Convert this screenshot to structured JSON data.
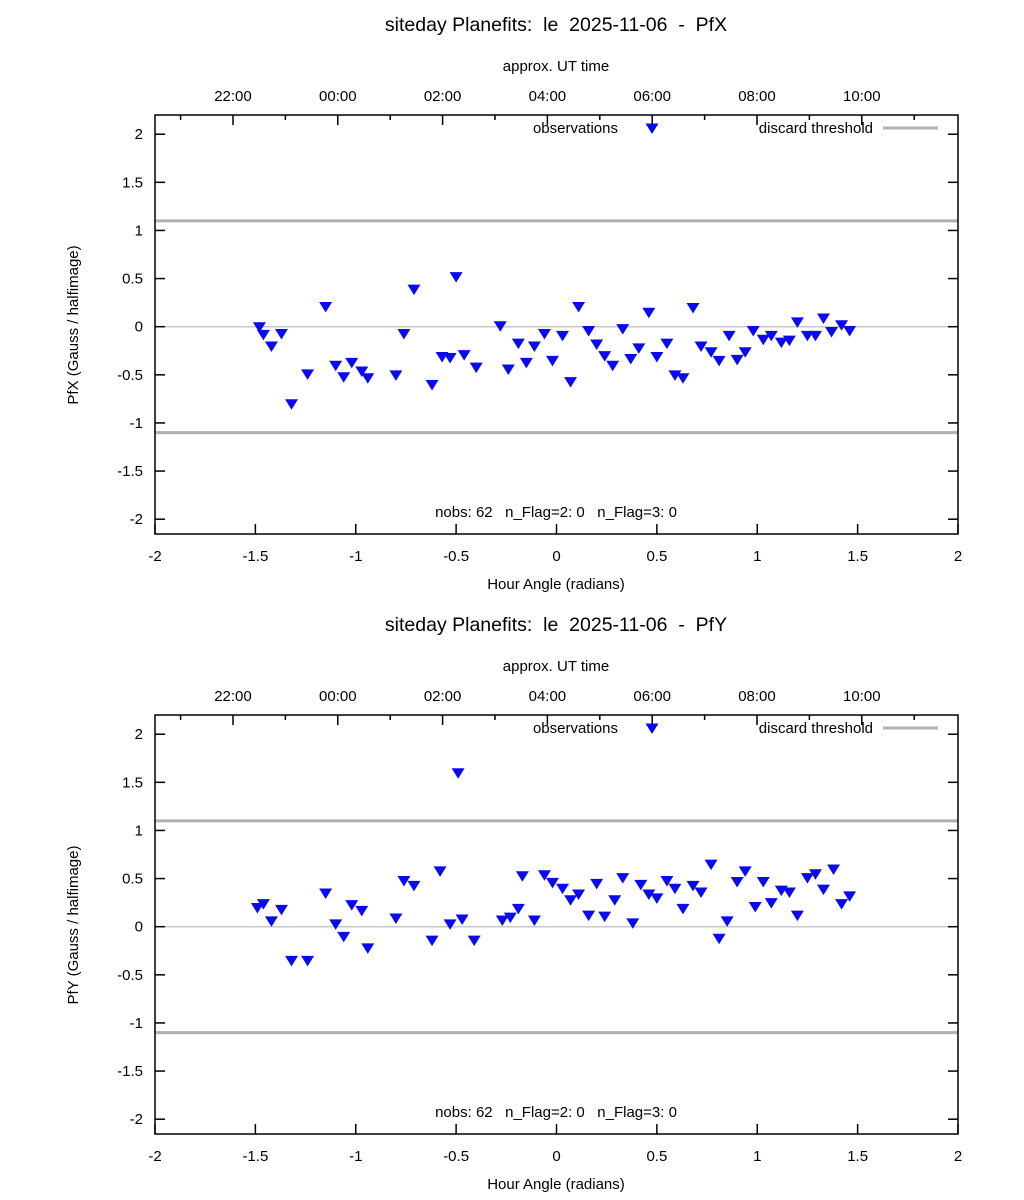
{
  "page": {
    "background": "#ffffff"
  },
  "colors": {
    "marker": "#0a0aee",
    "threshold_line": "#b0b0b0",
    "zero_line": "#c8c8c8",
    "axis": "#000000",
    "text": "#000000"
  },
  "chart_data": [
    {
      "type": "scatter",
      "title": "siteday Planefits:  le  2025-11-06  -  PfX",
      "x2_label": "approx. UT time",
      "ylabel": "PfX (Gauss / halfimage)",
      "xlabel": "Hour Angle (radians)",
      "stats_text": "nobs: 62   n_Flag=2: 0   n_Flag=3: 0",
      "nobs": 62,
      "n_flag2": 0,
      "n_flag3": 0,
      "legend": [
        {
          "label": "observations",
          "type": "marker",
          "marker": "triangle-down"
        },
        {
          "label": "discard threshold",
          "type": "line"
        }
      ],
      "legend_position": "inside-top-right",
      "grid": "zero-line-only",
      "xlim": [
        -2,
        2
      ],
      "ylim": [
        -2.2,
        2.2
      ],
      "x_ticks": [
        -2,
        -1.5,
        -1,
        -0.5,
        0,
        0.5,
        1,
        1.5,
        2
      ],
      "x_tick_labels": [
        "-2",
        "-1.5",
        "-1",
        "-0.5",
        "0",
        "0.5",
        "1",
        "1.5",
        "2"
      ],
      "y_ticks": [
        2,
        1.5,
        1,
        0.5,
        0,
        -0.5,
        -1,
        -1.5,
        -2
      ],
      "y_tick_labels": [
        "2",
        "1.5",
        "1",
        "0.5",
        "0",
        "-0.5",
        "-1",
        "-1.5",
        "-2"
      ],
      "x2_ticks": [
        {
          "label": "22:00",
          "x": -1.6115
        },
        {
          "label": "00:00",
          "x": -1.0894
        },
        {
          "label": "02:00",
          "x": -0.5674
        },
        {
          "label": "04:00",
          "x": -0.0454
        },
        {
          "label": "06:00",
          "x": 0.4767
        },
        {
          "label": "08:00",
          "x": 0.9987
        },
        {
          "label": "10:00",
          "x": 1.5208
        }
      ],
      "x2_minor_ticks": [
        -1.8725,
        -1.3505,
        -0.8284,
        -0.3064,
        0.2157,
        0.7377,
        1.2597,
        1.7818
      ],
      "thresholds": [
        1.1,
        -1.1
      ],
      "zero_line": 0,
      "series": [
        {
          "name": "observations",
          "marker": "triangle-down",
          "points": [
            [
              -1.48,
              0.0
            ],
            [
              -1.46,
              -0.08
            ],
            [
              -1.42,
              -0.2
            ],
            [
              -1.37,
              -0.07
            ],
            [
              -1.32,
              -0.8
            ],
            [
              -1.24,
              -0.49
            ],
            [
              -1.15,
              0.21
            ],
            [
              -1.1,
              -0.4
            ],
            [
              -1.06,
              -0.52
            ],
            [
              -1.02,
              -0.37
            ],
            [
              -0.97,
              -0.46
            ],
            [
              -0.94,
              -0.53
            ],
            [
              -0.8,
              -0.5
            ],
            [
              -0.76,
              -0.07
            ],
            [
              -0.71,
              0.39
            ],
            [
              -0.62,
              -0.6
            ],
            [
              -0.57,
              -0.31
            ],
            [
              -0.53,
              -0.32
            ],
            [
              -0.5,
              0.52
            ],
            [
              -0.46,
              -0.29
            ],
            [
              -0.4,
              -0.42
            ],
            [
              -0.28,
              0.01
            ],
            [
              -0.24,
              -0.44
            ],
            [
              -0.19,
              -0.17
            ],
            [
              -0.15,
              -0.37
            ],
            [
              -0.11,
              -0.2
            ],
            [
              -0.06,
              -0.07
            ],
            [
              -0.02,
              -0.35
            ],
            [
              0.03,
              -0.09
            ],
            [
              0.07,
              -0.57
            ],
            [
              0.11,
              0.21
            ],
            [
              0.16,
              -0.04
            ],
            [
              0.2,
              -0.18
            ],
            [
              0.24,
              -0.3
            ],
            [
              0.28,
              -0.4
            ],
            [
              0.33,
              -0.02
            ],
            [
              0.37,
              -0.33
            ],
            [
              0.41,
              -0.22
            ],
            [
              0.46,
              0.15
            ],
            [
              0.5,
              -0.31
            ],
            [
              0.55,
              -0.17
            ],
            [
              0.59,
              -0.5
            ],
            [
              0.63,
              -0.53
            ],
            [
              0.68,
              0.2
            ],
            [
              0.72,
              -0.2
            ],
            [
              0.77,
              -0.26
            ],
            [
              0.81,
              -0.35
            ],
            [
              0.86,
              -0.09
            ],
            [
              0.9,
              -0.34
            ],
            [
              0.94,
              -0.26
            ],
            [
              0.98,
              -0.04
            ],
            [
              1.03,
              -0.13
            ],
            [
              1.07,
              -0.09
            ],
            [
              1.12,
              -0.16
            ],
            [
              1.16,
              -0.14
            ],
            [
              1.2,
              0.05
            ],
            [
              1.25,
              -0.09
            ],
            [
              1.29,
              -0.09
            ],
            [
              1.33,
              0.09
            ],
            [
              1.37,
              -0.05
            ],
            [
              1.42,
              0.02
            ],
            [
              1.46,
              -0.04
            ]
          ]
        }
      ]
    },
    {
      "type": "scatter",
      "title": "siteday Planefits:  le  2025-11-06  -  PfY",
      "x2_label": "approx. UT time",
      "ylabel": "PfY (Gauss / halfimage)",
      "xlabel": "Hour Angle (radians)",
      "stats_text": "nobs: 62   n_Flag=2: 0   n_Flag=3: 0",
      "nobs": 62,
      "n_flag2": 0,
      "n_flag3": 0,
      "legend": [
        {
          "label": "observations",
          "type": "marker",
          "marker": "triangle-down"
        },
        {
          "label": "discard threshold",
          "type": "line"
        }
      ],
      "legend_position": "inside-top-right",
      "grid": "zero-line-only",
      "xlim": [
        -2,
        2
      ],
      "ylim": [
        -2.2,
        2.2
      ],
      "x_ticks": [
        -2,
        -1.5,
        -1,
        -0.5,
        0,
        0.5,
        1,
        1.5,
        2
      ],
      "x_tick_labels": [
        "-2",
        "-1.5",
        "-1",
        "-0.5",
        "0",
        "0.5",
        "1",
        "1.5",
        "2"
      ],
      "y_ticks": [
        2,
        1.5,
        1,
        0.5,
        0,
        -0.5,
        -1,
        -1.5,
        -2
      ],
      "y_tick_labels": [
        "2",
        "1.5",
        "1",
        "0.5",
        "0",
        "-0.5",
        "-1",
        "-1.5",
        "-2"
      ],
      "x2_ticks": [
        {
          "label": "22:00",
          "x": -1.6115
        },
        {
          "label": "00:00",
          "x": -1.0894
        },
        {
          "label": "02:00",
          "x": -0.5674
        },
        {
          "label": "04:00",
          "x": -0.0454
        },
        {
          "label": "06:00",
          "x": 0.4767
        },
        {
          "label": "08:00",
          "x": 0.9987
        },
        {
          "label": "10:00",
          "x": 1.5208
        }
      ],
      "x2_minor_ticks": [
        -1.8725,
        -1.3505,
        -0.8284,
        -0.3064,
        0.2157,
        0.7377,
        1.2597,
        1.7818
      ],
      "thresholds": [
        1.1,
        -1.1
      ],
      "zero_line": 0,
      "series": [
        {
          "name": "observations",
          "marker": "triangle-down",
          "points": [
            [
              -1.49,
              0.2
            ],
            [
              -1.46,
              0.24
            ],
            [
              -1.42,
              0.06
            ],
            [
              -1.37,
              0.18
            ],
            [
              -1.32,
              -0.35
            ],
            [
              -1.24,
              -0.35
            ],
            [
              -1.15,
              0.35
            ],
            [
              -1.1,
              0.03
            ],
            [
              -1.06,
              -0.1
            ],
            [
              -1.02,
              0.23
            ],
            [
              -0.97,
              0.17
            ],
            [
              -0.94,
              -0.22
            ],
            [
              -0.8,
              0.09
            ],
            [
              -0.76,
              0.48
            ],
            [
              -0.71,
              0.43
            ],
            [
              -0.62,
              -0.14
            ],
            [
              -0.58,
              0.58
            ],
            [
              -0.53,
              0.03
            ],
            [
              -0.49,
              1.6
            ],
            [
              -0.47,
              0.08
            ],
            [
              -0.41,
              -0.14
            ],
            [
              -0.27,
              0.07
            ],
            [
              -0.23,
              0.1
            ],
            [
              -0.19,
              0.19
            ],
            [
              -0.17,
              0.53
            ],
            [
              -0.11,
              0.07
            ],
            [
              -0.06,
              0.54
            ],
            [
              -0.02,
              0.46
            ],
            [
              0.03,
              0.4
            ],
            [
              0.07,
              0.28
            ],
            [
              0.11,
              0.34
            ],
            [
              0.16,
              0.12
            ],
            [
              0.2,
              0.45
            ],
            [
              0.24,
              0.11
            ],
            [
              0.29,
              0.28
            ],
            [
              0.33,
              0.51
            ],
            [
              0.38,
              0.04
            ],
            [
              0.42,
              0.44
            ],
            [
              0.46,
              0.34
            ],
            [
              0.5,
              0.3
            ],
            [
              0.55,
              0.48
            ],
            [
              0.59,
              0.4
            ],
            [
              0.63,
              0.19
            ],
            [
              0.68,
              0.43
            ],
            [
              0.72,
              0.36
            ],
            [
              0.77,
              0.65
            ],
            [
              0.81,
              -0.12
            ],
            [
              0.85,
              0.06
            ],
            [
              0.9,
              0.47
            ],
            [
              0.94,
              0.58
            ],
            [
              0.99,
              0.21
            ],
            [
              1.03,
              0.47
            ],
            [
              1.07,
              0.25
            ],
            [
              1.12,
              0.38
            ],
            [
              1.16,
              0.36
            ],
            [
              1.2,
              0.12
            ],
            [
              1.25,
              0.51
            ],
            [
              1.29,
              0.55
            ],
            [
              1.33,
              0.39
            ],
            [
              1.38,
              0.6
            ],
            [
              1.42,
              0.24
            ],
            [
              1.46,
              0.32
            ]
          ]
        }
      ]
    }
  ]
}
